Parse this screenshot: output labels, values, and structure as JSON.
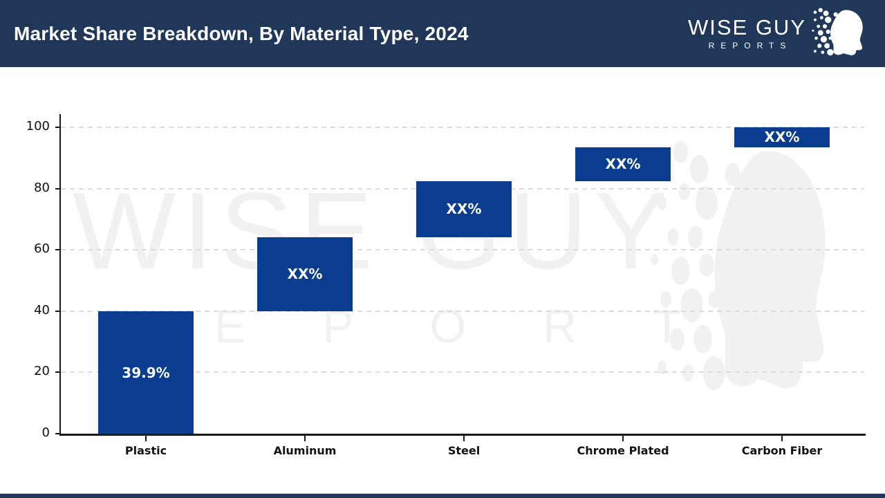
{
  "header": {
    "title": "Market Share Breakdown, By Material Type, 2024",
    "logo": {
      "line1": "WISE GUY",
      "line2": "REPORTS"
    }
  },
  "watermark": {
    "line1": "WISE GUY",
    "line2": "R E P O R T S"
  },
  "colors": {
    "header_bg": "#21375a",
    "bar": "#0a3d8f",
    "grid": "#dcdcdc",
    "axis": "#1a1a1a",
    "bar_label_text": "#ffffff",
    "watermark": "#f1f1f1"
  },
  "chart_data": {
    "type": "bar",
    "subtype": "waterfall",
    "title": "Market Share Breakdown, By Material Type, 2024",
    "categories": [
      "Plastic",
      "Aluminum",
      "Steel",
      "Chrome Plated",
      "Carbon Fiber"
    ],
    "segments": [
      {
        "category": "Plastic",
        "start": 0,
        "end": 39.9,
        "label": "39.9%"
      },
      {
        "category": "Aluminum",
        "start": 40,
        "end": 64.2,
        "label": "XX%"
      },
      {
        "category": "Steel",
        "start": 64.2,
        "end": 82.4,
        "label": "XX%"
      },
      {
        "category": "Chrome Plated",
        "start": 82.4,
        "end": 93.5,
        "label": "XX%"
      },
      {
        "category": "Carbon Fiber",
        "start": 93.5,
        "end": 100,
        "label": "XX%"
      }
    ],
    "xlabel": "",
    "ylabel": "",
    "ylim": [
      0,
      105
    ],
    "yticks": [
      0,
      20,
      40,
      60,
      80,
      100
    ],
    "grid": "horizontal-dashed",
    "legend": "none",
    "bar_color": "#0a3d8f"
  }
}
